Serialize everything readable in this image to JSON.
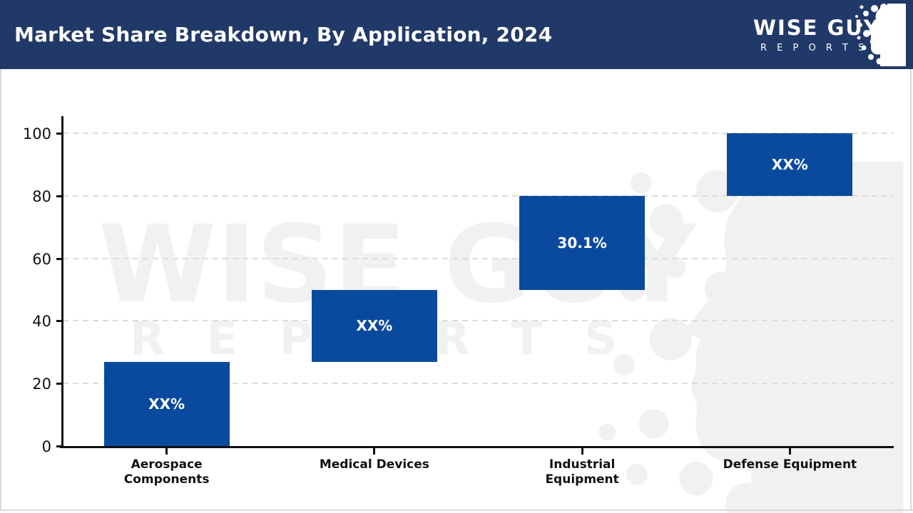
{
  "header": {
    "title": "Market Share Breakdown, By Application, 2024",
    "bg_color": "#213968",
    "logo": {
      "wordmark": "WISE GUY",
      "tagline": "R E P O R T S"
    }
  },
  "watermark": {
    "wordmark": "WISE GUY",
    "tagline": "R E P O R T S",
    "color": "#f1f1f1"
  },
  "chart_data": {
    "type": "bar",
    "variant": "waterfall",
    "title": "Market Share Breakdown, By Application, 2024",
    "categories": [
      "Aerospace\nComponents",
      "Medical Devices",
      "Industrial\nEquipment",
      "Defense Equipment"
    ],
    "segments": [
      {
        "category": "Aerospace Components",
        "start": 0,
        "end": 26.9,
        "label": "XX%"
      },
      {
        "category": "Medical Devices",
        "start": 26.9,
        "end": 49.9,
        "label": "XX%"
      },
      {
        "category": "Industrial Equipment",
        "start": 49.9,
        "end": 80,
        "label": "30.1%"
      },
      {
        "category": "Defense Equipment",
        "start": 80,
        "end": 100,
        "label": "XX%"
      }
    ],
    "xlabel": "",
    "ylabel": "",
    "ylim": [
      0,
      105
    ],
    "yticks": [
      "0",
      "20",
      "40",
      "60",
      "80",
      "100"
    ],
    "grid": "horizontal-dashed",
    "legend": "none",
    "colors": {
      "bar": "#0a4a9e",
      "bar_label": "#ffffff",
      "grid": "#dcdcdc",
      "axis": "#111111",
      "tick_label": "#111111"
    }
  }
}
